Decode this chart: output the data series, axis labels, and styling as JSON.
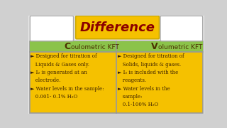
{
  "title": "Difference",
  "title_bg": "#F5C100",
  "title_color": "#8B0000",
  "title_fontsize": 13,
  "header_bg": "#8BC34A",
  "header_color": "#4B3000",
  "cell_bg": "#F5C100",
  "cell_text_color": "#3B2000",
  "border_color": "#999999",
  "col1_header": "Coulometric KFT",
  "col2_header": "Volumetric KFT",
  "col1_header_initial": "C",
  "col2_header_initial": "V",
  "col1_lines": [
    "► Designed for titration of",
    "   Liquids & Gases only.",
    "► I₂ is generated at an",
    "   electrode.",
    "► Water levels in the sample:",
    "   0.001- 0.1% H₂O"
  ],
  "col2_lines": [
    "► Designed for titration of",
    "   Solids, liquids & gases.",
    "► I₂ is included with the",
    "   reagents.",
    "► Water levels in the",
    "   sample:",
    "   0.1-100% H₂O"
  ],
  "fig_bg": "#d0d0d0",
  "outer_bg": "#e8e8e8"
}
